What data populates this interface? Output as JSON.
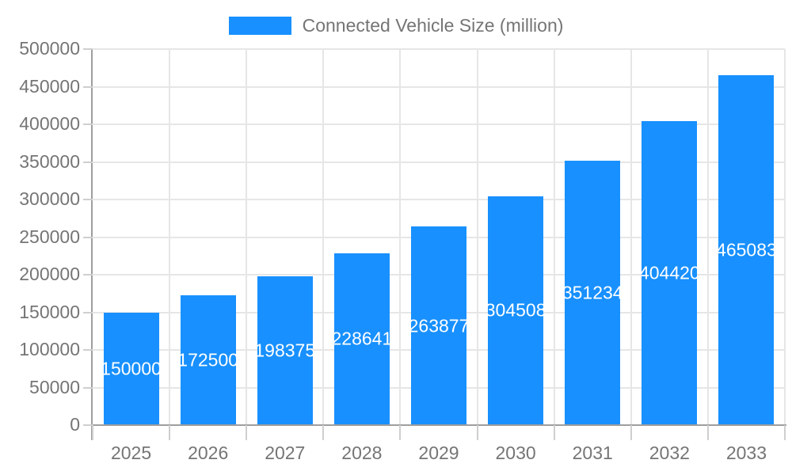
{
  "chart_data": {
    "type": "bar",
    "title": "Connected Vehicle Size (million)",
    "legend": {
      "label": "Connected Vehicle Size (million)",
      "position": "top"
    },
    "categories": [
      "2025",
      "2026",
      "2027",
      "2028",
      "2029",
      "2030",
      "2031",
      "2032",
      "2033"
    ],
    "series": [
      {
        "name": "Connected Vehicle Size (million)",
        "values": [
          150000,
          172500,
          198375,
          228641,
          263877,
          304508,
          351234,
          404420,
          465083
        ]
      }
    ],
    "bar_labels": [
      "150000",
      "172500",
      "198375",
      "228641",
      "263877",
      "304508",
      "351234",
      "404420",
      "465083"
    ],
    "xlabel": "",
    "ylabel": "",
    "ylim": [
      0,
      500000
    ],
    "yticks": [
      0,
      50000,
      100000,
      150000,
      200000,
      250000,
      300000,
      350000,
      400000,
      450000,
      500000
    ],
    "ytick_labels": [
      "0",
      "50000",
      "100000",
      "150000",
      "200000",
      "250000",
      "300000",
      "350000",
      "400000",
      "450000",
      "500000"
    ],
    "grid": true,
    "colors": {
      "bar": "#1890ff",
      "axis_text": "#757575",
      "bar_label_text": "#ffffff",
      "grid": "#e6e6e6",
      "tick": "#cfcfcf",
      "axis_line": "#9e9e9e",
      "background": "#ffffff"
    }
  }
}
